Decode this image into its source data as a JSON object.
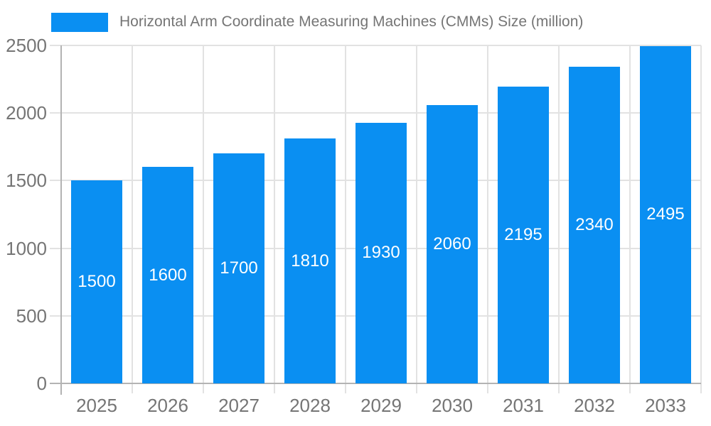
{
  "legend": {
    "label": "Horizontal Arm Coordinate Measuring Machines (CMMs) Size (million)"
  },
  "colors": {
    "bar": "#0a8ff2",
    "axis": "#b3b3b3",
    "grid": "#e2e2e2",
    "label": "#757575",
    "value_label": "#ffffff",
    "background": "#ffffff"
  },
  "chart_data": {
    "type": "bar",
    "title": "Horizontal Arm Coordinate Measuring Machines (CMMs) Size (million)",
    "series_name": "Horizontal Arm Coordinate Measuring Machines (CMMs) Size (million)",
    "categories": [
      "2025",
      "2026",
      "2027",
      "2028",
      "2029",
      "2030",
      "2031",
      "2032",
      "2033"
    ],
    "values": [
      1500,
      1600,
      1700,
      1810,
      1930,
      2060,
      2195,
      2340,
      2495
    ],
    "xlabel": "",
    "ylabel": "",
    "ylim": [
      0,
      2500
    ],
    "yticks": [
      0,
      500,
      1000,
      1500,
      2000,
      2500
    ],
    "grid": true,
    "legend_position": "top-left",
    "value_label_position": "inside-center"
  }
}
